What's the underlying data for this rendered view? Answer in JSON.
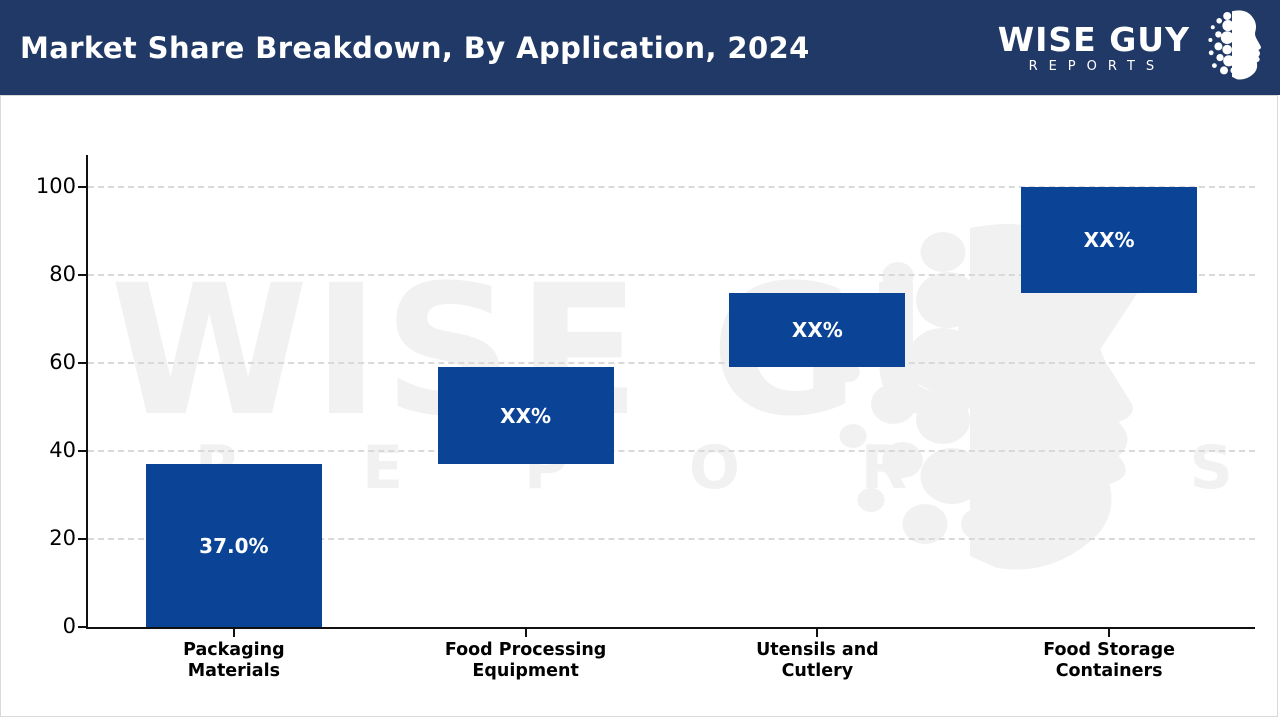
{
  "header": {
    "title": "Market Share Breakdown, By Application, 2024",
    "logo": {
      "line1": "WISE GUY",
      "line2": "REPORTS"
    }
  },
  "watermark": {
    "line1": "WISE GUY",
    "line2": "R E P O R T S"
  },
  "colors": {
    "header_bg": "#213966",
    "bar": "#0b4397",
    "grid": "#d9d9d9",
    "axis": "#111111",
    "bar_label": "#ffffff",
    "watermark": "#f1f1f2",
    "panel_border": "#d9d9d9"
  },
  "chart_data": {
    "type": "bar",
    "subtype": "waterfall",
    "title": "Market Share Breakdown, By Application, 2024",
    "categories": [
      "Packaging Materials",
      "Food Processing Equipment",
      "Utensils and Cutlery",
      "Food Storage Containers"
    ],
    "category_lines": [
      [
        "Packaging",
        "Materials"
      ],
      [
        "Food Processing",
        "Equipment"
      ],
      [
        "Utensils and",
        "Cutlery"
      ],
      [
        "Food Storage",
        "Containers"
      ]
    ],
    "segments": [
      {
        "start": 0,
        "end": 37,
        "label": "37.0%"
      },
      {
        "start": 37,
        "end": 59,
        "label": "XX%"
      },
      {
        "start": 59,
        "end": 76,
        "label": "XX%"
      },
      {
        "start": 76,
        "end": 100,
        "label": "XX%"
      }
    ],
    "yticks": [
      0,
      20,
      40,
      60,
      80,
      100
    ],
    "ylim": [
      0,
      107
    ],
    "xlabel": "",
    "ylabel": "",
    "grid": "horizontal-dashed",
    "legend": "none"
  }
}
